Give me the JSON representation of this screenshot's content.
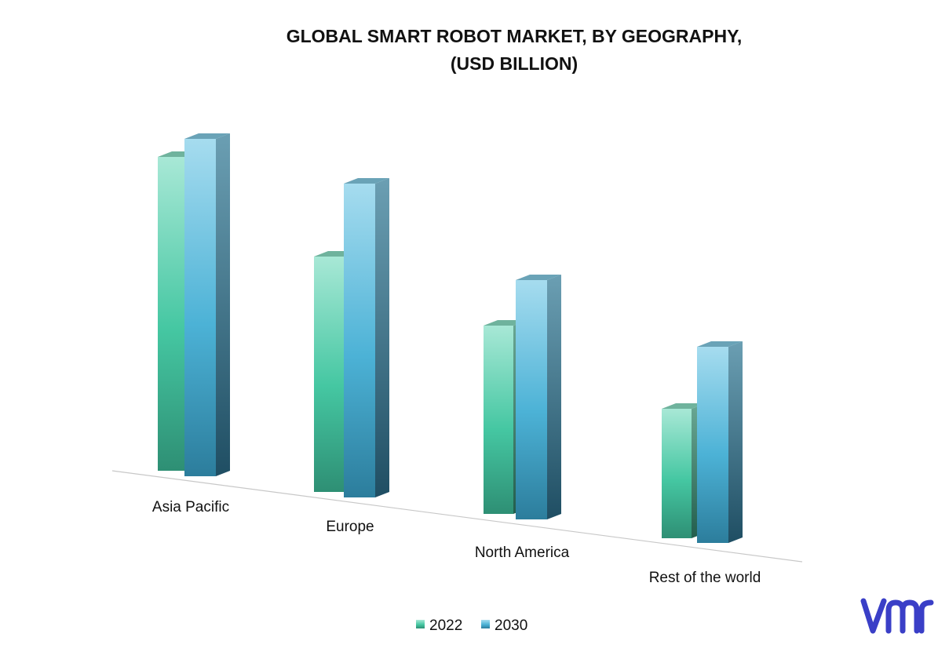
{
  "chart_data": {
    "type": "bar",
    "title": [
      "GLOBAL SMART ROBOT MARKET, BY GEOGRAPHY,",
      "(USD BILLION)"
    ],
    "categories": [
      "Asia Pacific",
      "Europe",
      "North America",
      "Rest of the world"
    ],
    "series": [
      {
        "name": "2022",
        "values": [
          4.0,
          3.0,
          2.4,
          1.65
        ],
        "color": "#4cc7a3"
      },
      {
        "name": "2030",
        "values": [
          4.3,
          4.0,
          3.05,
          2.5
        ],
        "color": "#4db3d8"
      }
    ],
    "ylim": [
      0,
      4.5
    ],
    "xlabel": "",
    "ylabel": "",
    "grid": false,
    "legend_position": "bottom",
    "style": "3d-perspective"
  },
  "branding": {
    "logo_name": "vmr-logo",
    "logo_color": "#3a3fc7"
  }
}
